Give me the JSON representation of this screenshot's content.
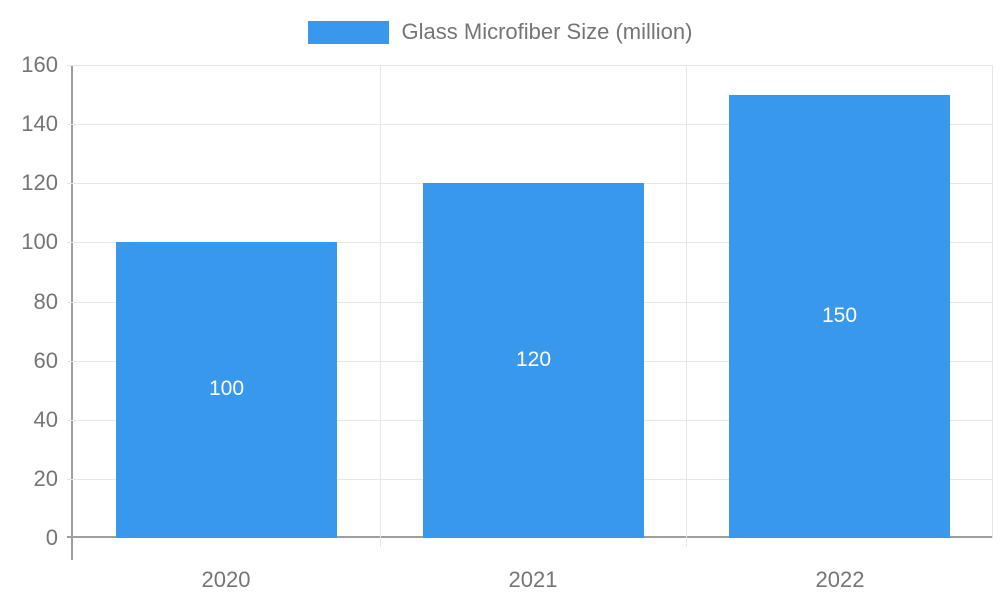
{
  "chart_data": {
    "type": "bar",
    "title": "Glass Microfiber Size (million)",
    "legend_label": "Glass Microfiber Size (million)",
    "legend_position": "top-center",
    "categories": [
      "2020",
      "2021",
      "2022"
    ],
    "values": [
      100,
      120,
      150
    ],
    "data_labels": [
      "100",
      "120",
      "150"
    ],
    "xlabel": "",
    "ylabel": "",
    "ylim": [
      0,
      160
    ],
    "ytick_step": 20,
    "yticks": [
      0,
      20,
      40,
      60,
      80,
      100,
      120,
      140,
      160
    ],
    "grid": true,
    "colors": {
      "bar": "#3899EC",
      "data_label_text": "#FFFFFF",
      "axis_text": "#757575",
      "legend_text": "#757575",
      "gridline": "#E6E6E6",
      "axis_line": "#9E9E9E",
      "background": "#FFFFFF"
    }
  }
}
